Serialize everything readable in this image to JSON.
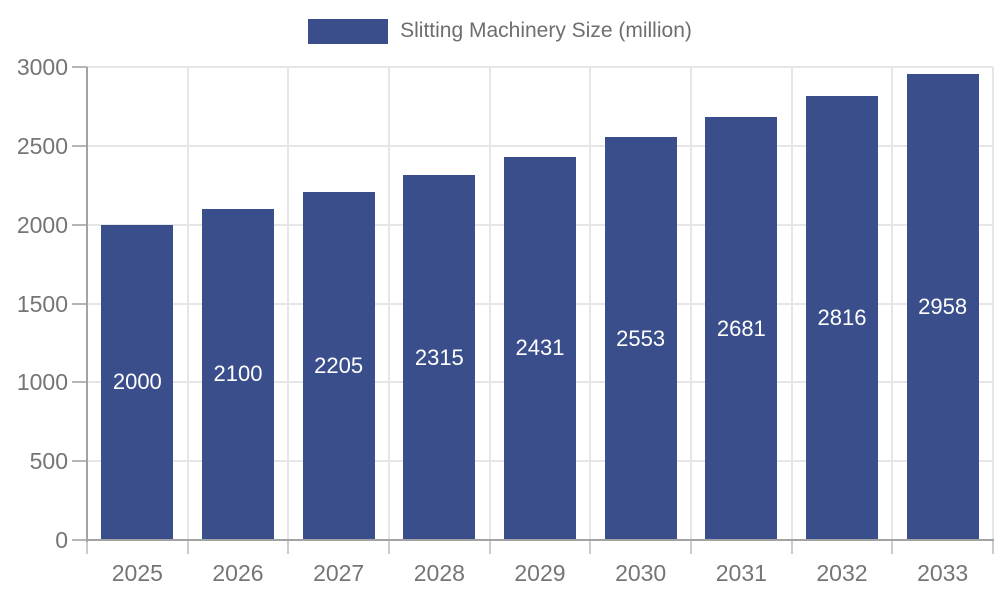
{
  "legend": {
    "label": "Slitting Machinery Size (million)"
  },
  "chart_data": {
    "type": "bar",
    "title": "",
    "xlabel": "",
    "ylabel": "",
    "categories": [
      "2025",
      "2026",
      "2027",
      "2028",
      "2029",
      "2030",
      "2031",
      "2032",
      "2033"
    ],
    "series": [
      {
        "name": "Slitting Machinery Size (million)",
        "values": [
          2000,
          2100,
          2205,
          2315,
          2431,
          2553,
          2681,
          2816,
          2958
        ]
      }
    ],
    "data_labels_shown": true,
    "ylim": [
      0,
      3000
    ],
    "yticks": [
      0,
      500,
      1000,
      1500,
      2000,
      2500,
      3000
    ],
    "grid": true,
    "legend_position": "top"
  },
  "colors": {
    "bar": "#3A4E8C",
    "bar_label": "#ffffff",
    "grid": "#e6e6e6",
    "axis": "#a3a3a3",
    "tick_text": "#757575",
    "legend_text": "#6e6e6e",
    "background": "#ffffff"
  }
}
